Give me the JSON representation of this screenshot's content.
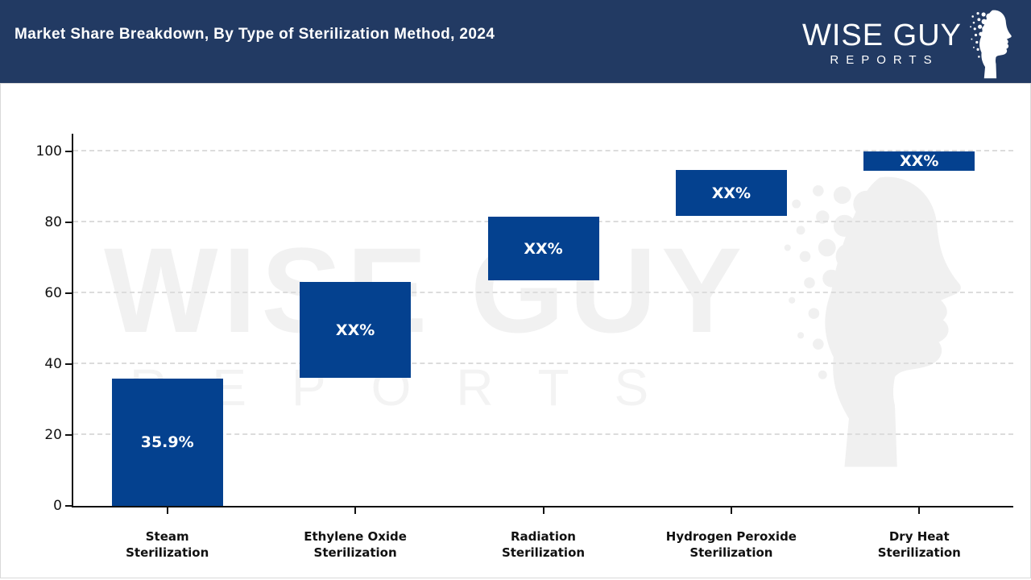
{
  "header": {
    "title": "Market Share Breakdown, By Type of Sterilization Method, 2024",
    "logo": {
      "name_line": "WISE GUY",
      "sub_line": "REPORTS",
      "head_icon": "dotted-face-profile"
    }
  },
  "watermark": {
    "name_line": "WISE GUY",
    "sub_line": "REPORTS",
    "head_icon": "dotted-face-profile"
  },
  "chart_data": {
    "type": "bar",
    "variant": "waterfall",
    "title": "Market Share Breakdown, By Type of Sterilization Method, 2024",
    "categories": [
      "Steam Sterilization",
      "Ethylene Oxide Sterilization",
      "Radiation Sterilization",
      "Hydrogen Peroxide Sterilization",
      "Dry Heat Sterilization"
    ],
    "category_lines": [
      [
        "Steam",
        "Sterilization"
      ],
      [
        "Ethylene Oxide",
        "Sterilization"
      ],
      [
        "Radiation",
        "Sterilization"
      ],
      [
        "Hydrogen Peroxide",
        "Sterilization"
      ],
      [
        "Dry Heat",
        "Sterilization"
      ]
    ],
    "bars": [
      {
        "start": 0,
        "end": 35.9,
        "label": "35.9%"
      },
      {
        "start": 36.1,
        "end": 63.2,
        "label": "XX%"
      },
      {
        "start": 63.6,
        "end": 81.5,
        "label": "XX%"
      },
      {
        "start": 81.8,
        "end": 94.8,
        "label": "XX%"
      },
      {
        "start": 94.5,
        "end": 100,
        "label": "XX%"
      }
    ],
    "yticks": [
      0,
      20,
      40,
      60,
      80,
      100
    ],
    "ylim": [
      0,
      105
    ],
    "xlabel": "",
    "ylabel": "",
    "legend": null,
    "grid": "horizontal-dashed",
    "colors": {
      "bar": "#04418f",
      "bar_label": "#ffffff",
      "grid": "#dcdcdc",
      "axis": "#111111",
      "header_bg": "#223a63",
      "watermark": "#f1f1f1"
    }
  }
}
